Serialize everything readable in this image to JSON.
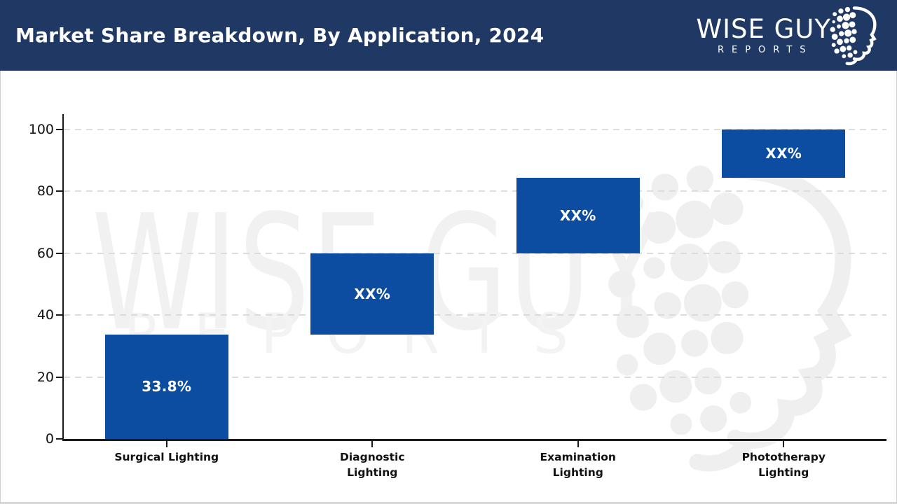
{
  "header": {
    "title": "Market Share Breakdown, By Application, 2024",
    "background_color": "#1f3864",
    "logo": {
      "wordmark": "WISE GUY",
      "subtitle": "REPORTS",
      "head_icon": "dotted-face-profile"
    }
  },
  "watermark": {
    "line1": "WISE GUY",
    "line2": "REPORTS"
  },
  "chart_data": {
    "type": "bar",
    "subtype": "waterfall",
    "title": "Market Share Breakdown, By Application, 2024",
    "categories": [
      "Surgical Lighting",
      "Diagnostic\nLighting",
      "Examination\nLighting",
      "Phototherapy\nLighting"
    ],
    "bars": [
      {
        "category": "Surgical Lighting",
        "start": 0,
        "end": 33.8,
        "label": "33.8%"
      },
      {
        "category": "Diagnostic Lighting",
        "start": 33.8,
        "end": 60,
        "label": "XX%"
      },
      {
        "category": "Examination Lighting",
        "start": 60,
        "end": 84.5,
        "label": "XX%"
      },
      {
        "category": "Phototherapy Lighting",
        "start": 84.5,
        "end": 100,
        "label": "XX%"
      }
    ],
    "ylim": [
      0,
      100
    ],
    "yticks": [
      0,
      20,
      40,
      60,
      80,
      100
    ],
    "xlabel": "",
    "ylabel": "",
    "bar_color": "#0d4da1",
    "bar_label_color": "#ffffff",
    "grid": "horizontal-dashed",
    "gridline_color": "#dcdcdc",
    "axis_color": "#1a1a1a",
    "legend": "none"
  }
}
